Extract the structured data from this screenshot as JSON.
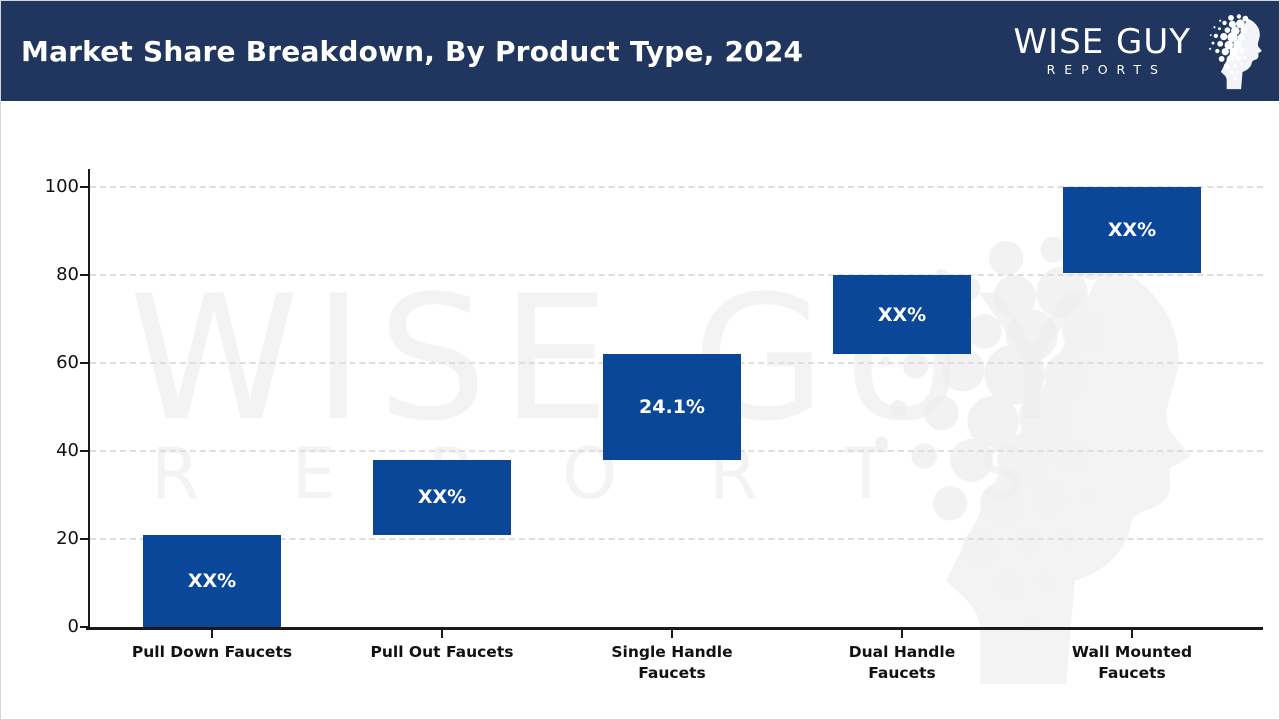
{
  "header": {
    "title": "Market Share Breakdown, By Product Type, 2024",
    "logo": {
      "line1": "WISE GUY",
      "line2": "REPORTS"
    }
  },
  "watermark": {
    "line1": "WISE GUY",
    "line2": "REPORTS"
  },
  "colors": {
    "header_bg": "#21365f",
    "bar_blue": "#0b4799",
    "grid": "#dedede",
    "axis": "#1a1a1a",
    "bar_label": "#ffffff",
    "watermark": "#f3f3f3"
  },
  "chart_data": {
    "type": "bar",
    "subtype": "floating-waterfall",
    "title": "Market Share Breakdown, By Product Type, 2024",
    "xlabel": "",
    "ylabel": "",
    "ylim": [
      0,
      104
    ],
    "yticks": [
      0,
      20,
      40,
      60,
      80,
      100
    ],
    "grid": {
      "horizontal": true,
      "style": "dashed"
    },
    "legend": null,
    "categories": [
      "Pull Down Faucets",
      "Pull Out Faucets",
      "Single Handle Faucets",
      "Dual Handle Faucets",
      "Wall Mounted Faucets"
    ],
    "category_label_lines": [
      [
        "Pull Down Faucets"
      ],
      [
        "Pull Out Faucets"
      ],
      [
        "Single Handle",
        "Faucets"
      ],
      [
        "Dual Handle",
        "Faucets"
      ],
      [
        "Wall Mounted",
        "Faucets"
      ]
    ],
    "bars": [
      {
        "category": "Pull Down Faucets",
        "start": 0,
        "end": 21,
        "label": "XX%"
      },
      {
        "category": "Pull Out Faucets",
        "start": 21,
        "end": 38,
        "label": "XX%"
      },
      {
        "category": "Single Handle Faucets",
        "start": 38,
        "end": 62.1,
        "label": "24.1%",
        "value": 24.1
      },
      {
        "category": "Dual Handle Faucets",
        "start": 62,
        "end": 80,
        "label": "XX%"
      },
      {
        "category": "Wall Mounted Faucets",
        "start": 80.4,
        "end": 100,
        "label": "XX%"
      }
    ]
  }
}
